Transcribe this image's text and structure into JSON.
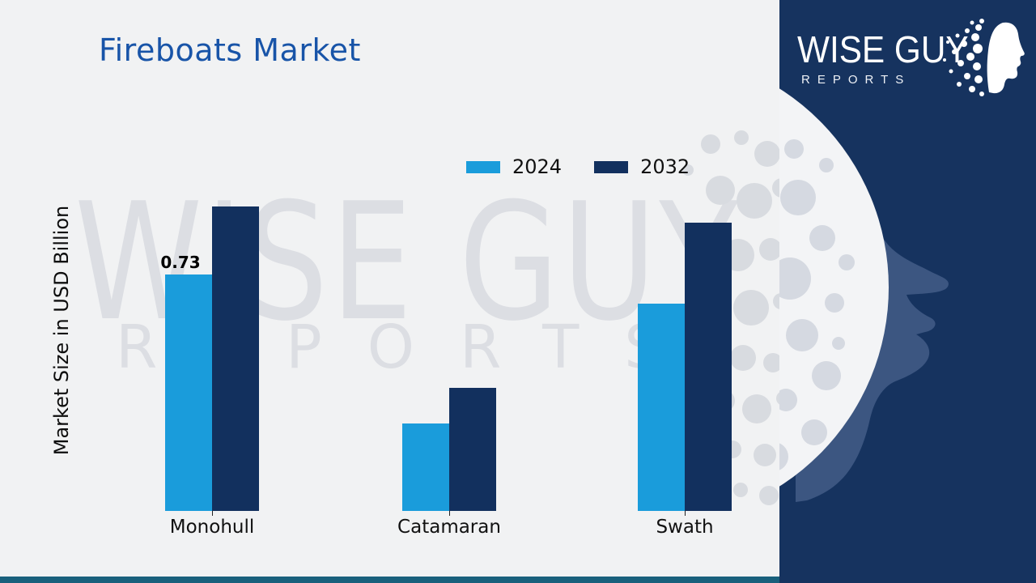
{
  "title": {
    "text": "Fireboats Market",
    "color": "#1854a8"
  },
  "watermark": {
    "line1": "WISE GUY",
    "line2": "REPORTS",
    "color": "#dcdee3"
  },
  "logo": {
    "line1": "WISE GUY",
    "line2": "REPORTS",
    "panel_color": "#16335f",
    "face_color": "#3c5681"
  },
  "legend": [
    {
      "label": "2024",
      "color": "#1a9cdb"
    },
    {
      "label": "2032",
      "color": "#12305e"
    }
  ],
  "chart_data": {
    "type": "bar",
    "categories": [
      "Monohull",
      "Catamaran",
      "Swath"
    ],
    "series": [
      {
        "name": "2024",
        "color": "#1a9cdb",
        "values": [
          0.73,
          0.27,
          0.64
        ]
      },
      {
        "name": "2032",
        "color": "#12305e",
        "values": [
          0.94,
          0.38,
          0.89
        ]
      }
    ],
    "title": "Fireboats Market",
    "xlabel": "",
    "ylabel": "Market Size in USD Billion",
    "ylim": [
      0,
      1
    ],
    "grid": false,
    "legend_position": "top-center",
    "data_labels": [
      {
        "series": "2024",
        "category": "Monohull",
        "text": "0.73"
      }
    ]
  },
  "accents": {
    "bottom_bar_color": "#19607c"
  }
}
